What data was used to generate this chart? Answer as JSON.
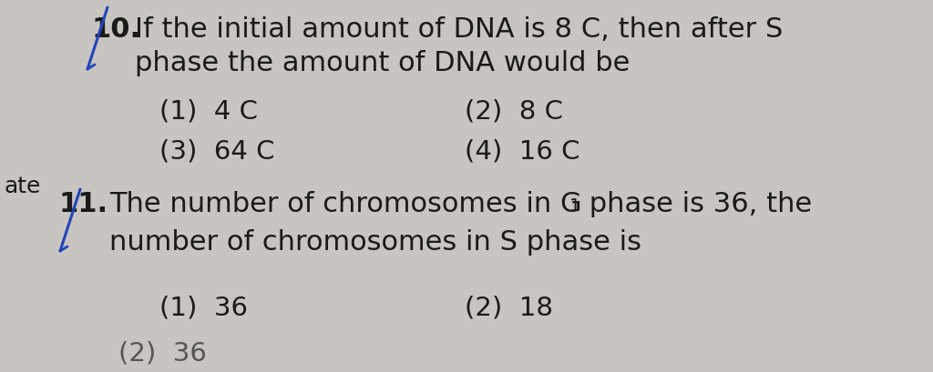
{
  "bg_color": "#c8c4c0",
  "text_color": "#1a1a1a",
  "q10_number": "10.",
  "q10_line1": "If the initial amount of DNA is 8 C, then after S",
  "q10_line2": "phase the amount of DNA would be",
  "q10_opt1": "(1)  4 C",
  "q10_opt2": "(2)  8 C",
  "q10_opt3": "(3)  64 C",
  "q10_opt4": "(4)  16 C",
  "q11_number": "11.",
  "q11_line1": "The number of chromosomes in G",
  "q11_sub": "1",
  "q11_line1b": " phase is 36, the",
  "q11_line2": "number of chromosomes in S phase is",
  "q11_opt1": "(1)  36",
  "q11_opt2": "(2)  18",
  "q11_partial": "(2)  36",
  "side_text": "ate",
  "font_size_main": 22,
  "font_size_opts": 21,
  "font_size_side": 18,
  "font_size_sub": 14
}
